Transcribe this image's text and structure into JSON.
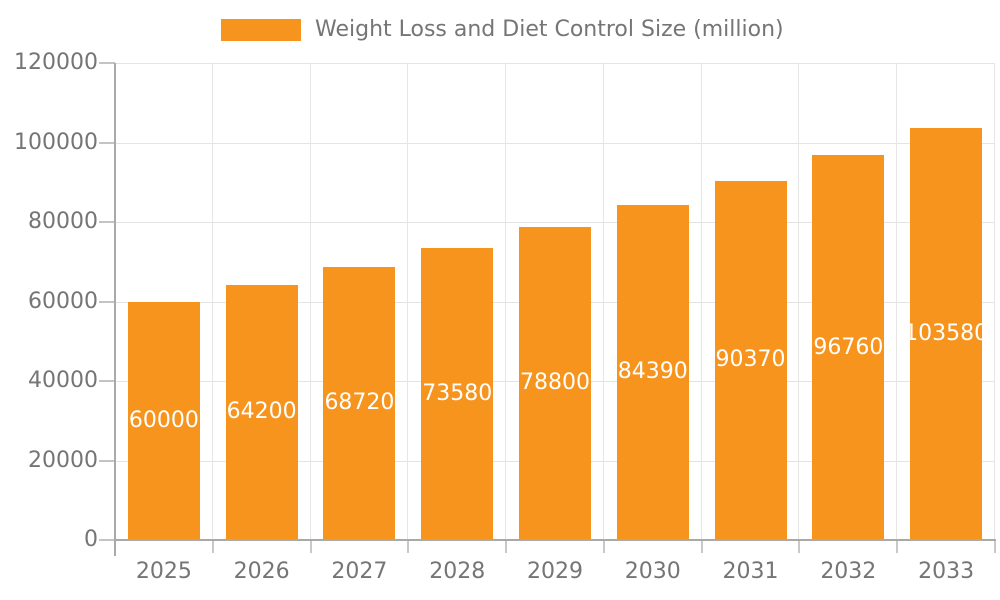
{
  "legend": {
    "label": "Weight Loss and Diet Control Size (million)"
  },
  "colors": {
    "bar": "#F7941E",
    "grid_horizontal": "#e4e4e4",
    "grid_vertical": "#e6e6e6",
    "axis_line": "#a9a9a9",
    "tick": "#c9c9c9",
    "axis_text": "#757575",
    "value_label_text": "#ffffff",
    "background": "#ffffff"
  },
  "chart_data": {
    "type": "bar",
    "title": "Weight Loss and Diet Control Size (million)",
    "categories": [
      "2025",
      "2026",
      "2027",
      "2028",
      "2029",
      "2030",
      "2031",
      "2032",
      "2033"
    ],
    "values": [
      60000,
      64200,
      68720,
      73580,
      78800,
      84390,
      90370,
      96760,
      103580
    ],
    "xlabel": "",
    "ylabel": "",
    "ylim": [
      0,
      120000
    ],
    "yticks": [
      0,
      20000,
      40000,
      60000,
      80000,
      100000,
      120000
    ],
    "grid": true,
    "legend_position": "top",
    "value_labels": "inside-center",
    "bar_color": "#F7941E"
  }
}
